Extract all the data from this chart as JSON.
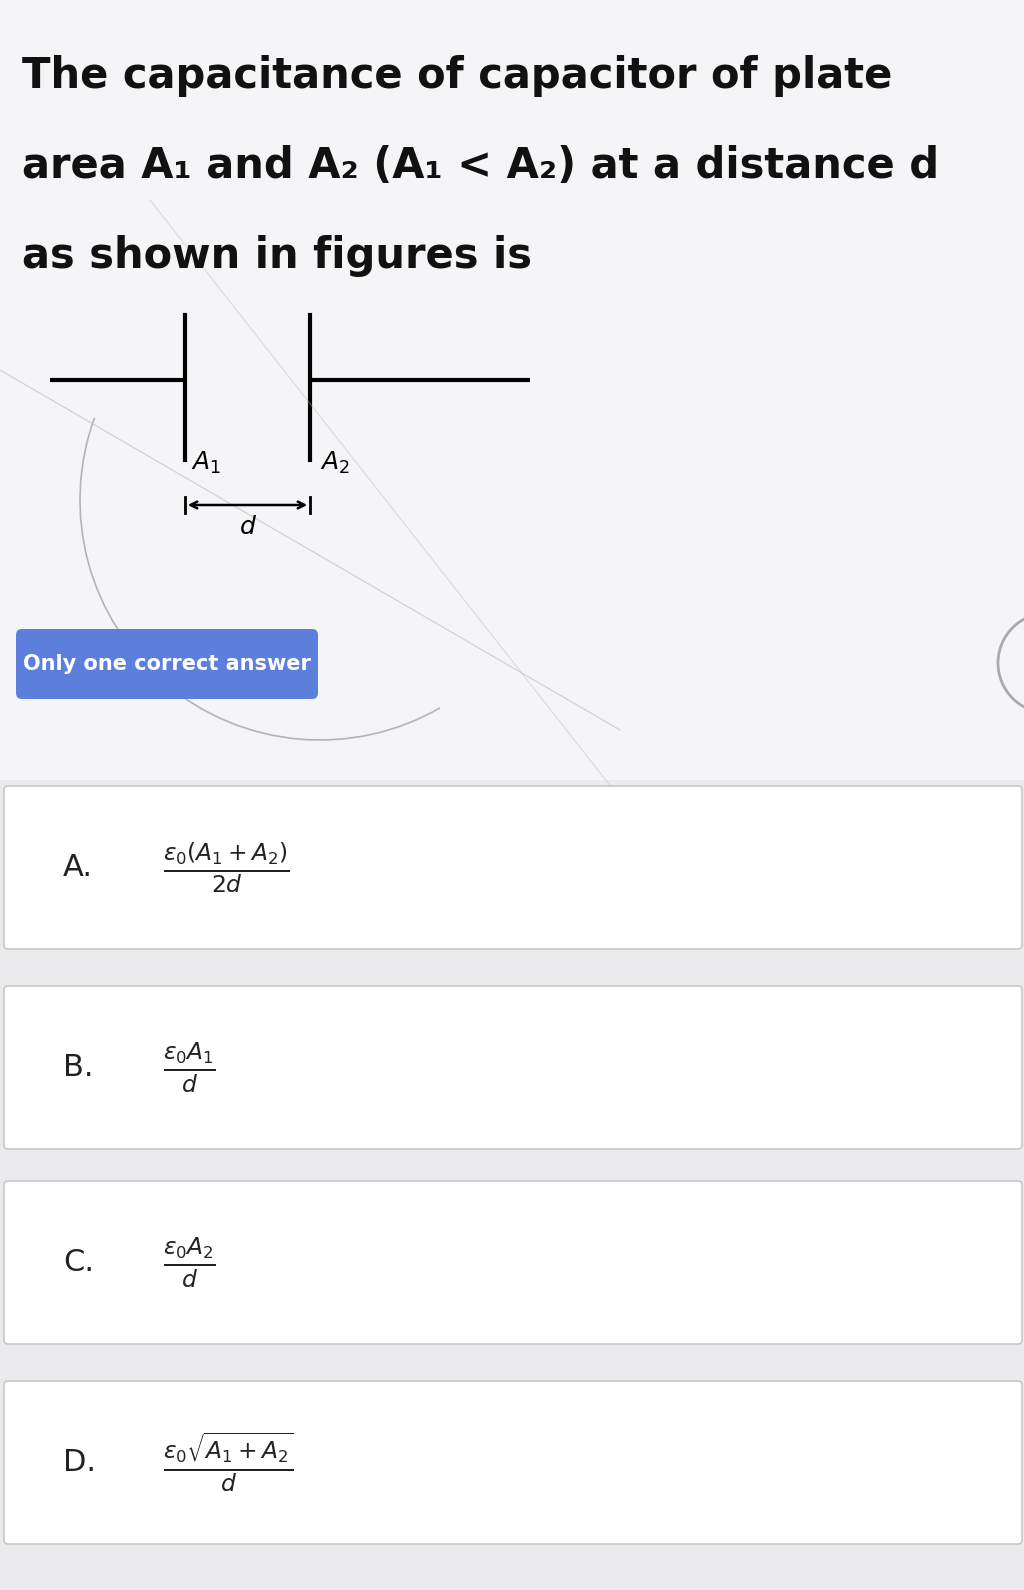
{
  "title_line1": "The capacitance of capacitor of plate",
  "title_line2": "area A₁ and A₂ (A₁ < A₂) at a distance d",
  "title_line3": "as shown in figures is",
  "badge_text": "Only one correct answer",
  "badge_color": "#5b7fdb",
  "bg_color": "#e8e8ea",
  "content_bg": "#f2f2f4",
  "option_bg": "#ffffff",
  "options": [
    "A",
    "B",
    "C",
    "D"
  ],
  "formulas": [
    "\\frac{\\varepsilon_0(A_1+A_2)}{2d}",
    "\\frac{\\varepsilon_0 A_1}{d}",
    "\\frac{\\varepsilon_0 A_2}{d}",
    "\\frac{\\varepsilon_0\\sqrt{A_1+A_2}}{d}"
  ],
  "title_fontsize": 30,
  "option_fontsize": 24,
  "label_fontsize": 22
}
